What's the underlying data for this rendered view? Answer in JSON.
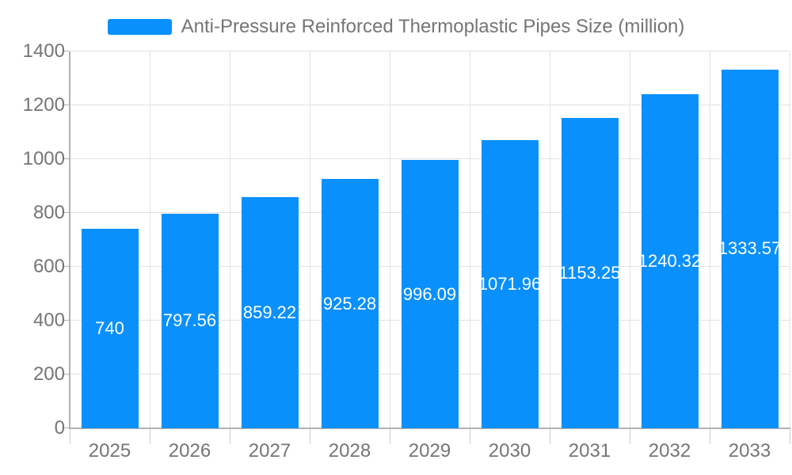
{
  "chart_data": {
    "type": "bar",
    "title": "Anti-Pressure Reinforced Thermoplastic Pipes Size (million)",
    "legend_entries": [
      "Anti-Pressure Reinforced Thermoplastic Pipes Size (million)"
    ],
    "legend_position": "top-center",
    "categories": [
      "2025",
      "2026",
      "2027",
      "2028",
      "2029",
      "2030",
      "2031",
      "2032",
      "2033"
    ],
    "values": [
      740,
      797.56,
      859.22,
      925.28,
      996.09,
      1071.96,
      1153.25,
      1240.32,
      1333.57
    ],
    "bar_labels": [
      "740",
      "797.56",
      "859.22",
      "925.28",
      "996.09",
      "1071.96",
      "1153.25",
      "1240.32",
      "1333.57"
    ],
    "xlabel": "",
    "ylabel": "",
    "ylim": [
      0,
      1400
    ],
    "yticks": [
      0,
      200,
      400,
      600,
      800,
      1000,
      1200,
      1400
    ],
    "grid": true,
    "colors": {
      "bar": "#0990fc",
      "bar_label_text": "#ffffff",
      "axis_line": "#b0b0b0",
      "grid_line": "#e2e2e2",
      "tick_mark": "#cccccc",
      "tick_text": "#757575",
      "legend_text": "#757575",
      "background": "#ffffff"
    }
  }
}
